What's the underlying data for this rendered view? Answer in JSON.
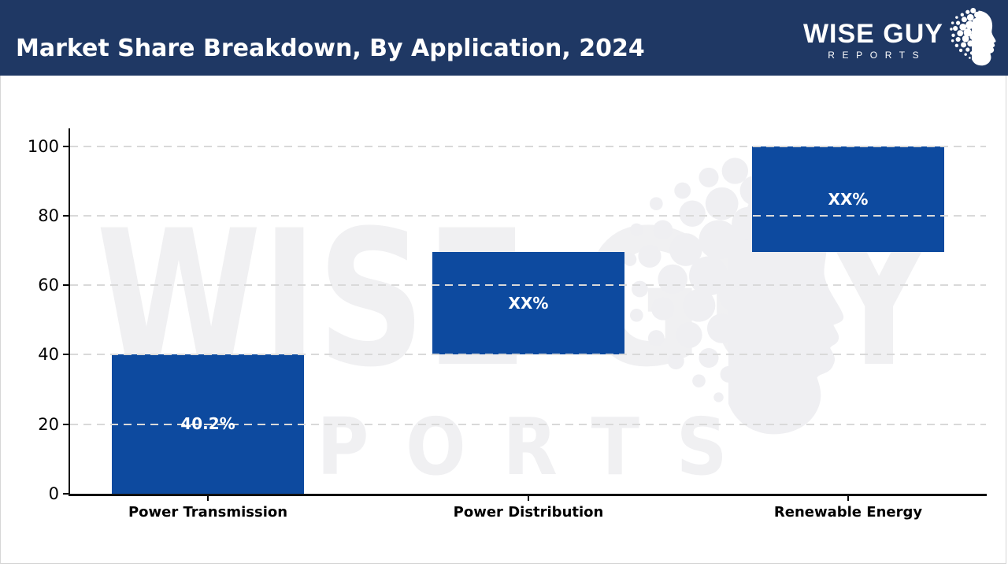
{
  "header": {
    "title": "Market Share Breakdown, By Application, 2024",
    "logo": {
      "line1": "WISE GUY",
      "line2": "REPORTS"
    }
  },
  "watermark": {
    "line1": "WISE GUY",
    "line2": "REPORTS"
  },
  "colors": {
    "header_bg": "#1f3864",
    "bar": "#0d4a9f",
    "bar_label": "#ffffff",
    "gridline": "#d9d9d9",
    "axis": "#111111",
    "watermark": "#f0f0f2",
    "title_text": "#ffffff"
  },
  "chart_data": {
    "type": "bar",
    "subtype": "floating-waterfall",
    "title": "Market Share Breakdown, By Application, 2024",
    "xlabel": "",
    "ylabel": "",
    "categories": [
      "Power Transmission",
      "Power Distribution",
      "Renewable Energy"
    ],
    "segments": [
      {
        "category": "Power Transmission",
        "start": 0,
        "end": 40.2,
        "label": "40.2%"
      },
      {
        "category": "Power Distribution",
        "start": 40.2,
        "end": 69.5,
        "label": "XX%"
      },
      {
        "category": "Renewable Energy",
        "start": 69.5,
        "end": 100,
        "label": "XX%"
      }
    ],
    "yticks": [
      0,
      20,
      40,
      60,
      80,
      100
    ],
    "ylim": [
      0,
      105
    ],
    "grid": "dashed-horizontal",
    "legend": "none"
  }
}
